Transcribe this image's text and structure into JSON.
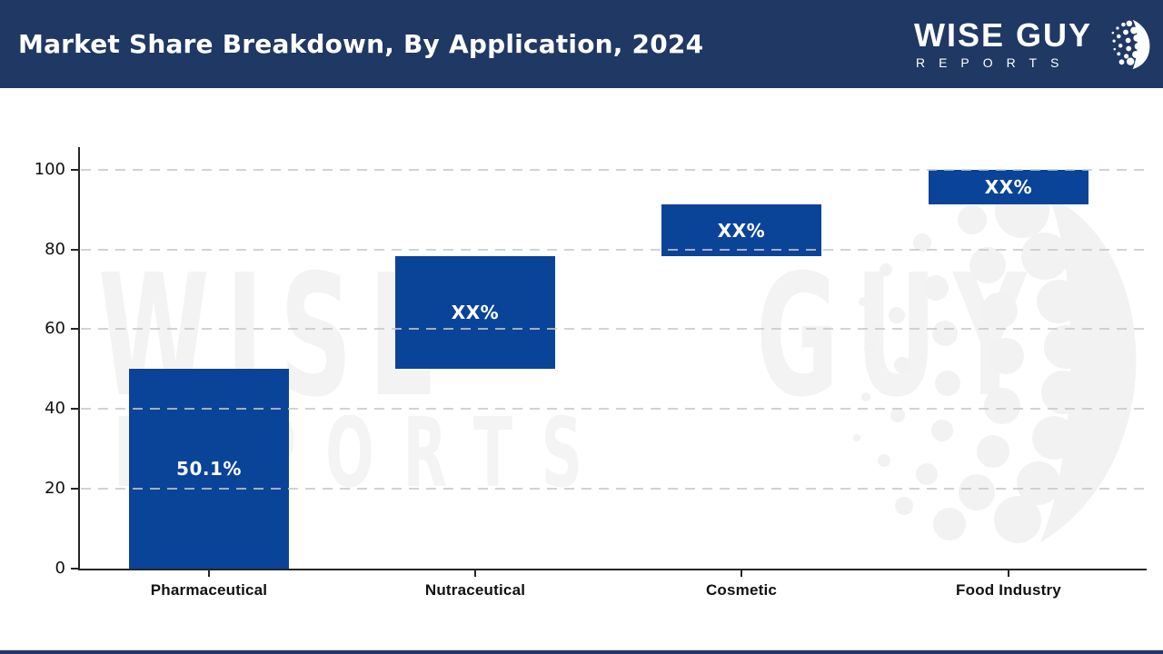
{
  "header": {
    "title": "Market Share Breakdown, By Application, 2024",
    "logo": {
      "line1": "WISE GUY",
      "line2": "REPORTS"
    }
  },
  "watermark": {
    "line1": "WISE GUY",
    "line2": "REPORTS"
  },
  "chart_data": {
    "type": "bar",
    "subtype": "waterfall",
    "title": "Market Share Breakdown, By Application, 2024",
    "categories": [
      "Pharmaceutical",
      "Nutraceutical",
      "Cosmetic",
      "Food Industry"
    ],
    "segments": [
      {
        "category": "Pharmaceutical",
        "start": 0,
        "end": 50.1,
        "label": "50.1%"
      },
      {
        "category": "Nutraceutical",
        "start": 50.1,
        "end": 78.3,
        "label": "XX%"
      },
      {
        "category": "Cosmetic",
        "start": 78.3,
        "end": 91.2,
        "label": "XX%"
      },
      {
        "category": "Food Industry",
        "start": 91.2,
        "end": 100,
        "label": "XX%"
      }
    ],
    "bar_labels": [
      "50.1%",
      "XX%",
      "XX%",
      "XX%"
    ],
    "xlabel": "",
    "ylabel": "",
    "ylim": [
      0,
      100
    ],
    "yticks": [
      0,
      20,
      40,
      60,
      80,
      100
    ],
    "grid": "horizontal-dashed",
    "legend": "none",
    "colors": {
      "bar": "#0a4499",
      "bar_label": "#ffffff",
      "grid": "#c8c8c8",
      "axis": "#262626",
      "tick_label": "#111111",
      "header_bg": "#1f3864",
      "watermark": "#f3f3f3"
    }
  }
}
